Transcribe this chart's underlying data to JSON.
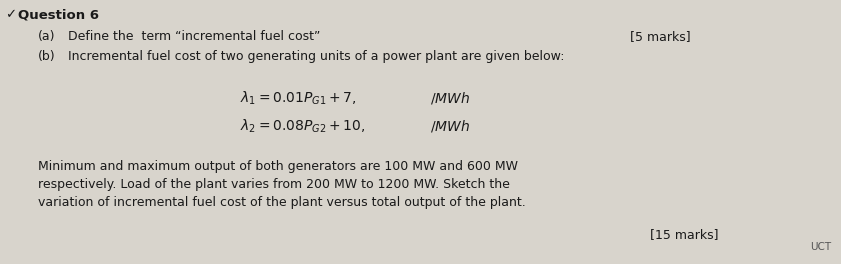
{
  "background_color": "#d8d4cc",
  "text_color": "#1a1a1a",
  "checkmark": "✓",
  "question_number": "Question 6",
  "part_a_label": "(a)",
  "part_a_text": "Define the  term “incremental fuel cost”",
  "part_a_marks": "[5 marks]",
  "part_b_label": "(b)",
  "part_b_text": "Incremental fuel cost of two generating units of a power plant are given below:",
  "eq1": "$\\lambda_1 = 0.01P_{G1} + 7,$   $/MWh$",
  "eq2": "$\\lambda_2 = 0.08P_{G2} + 10,$  $/MWh$",
  "body_line1": "Minimum and maximum output of both generators are 100 MW and 600 MW",
  "body_line2": "respectively. Load of the plant varies from 200 MW to 1200 MW. Sketch the",
  "body_line3": "variation of incremental fuel cost of the plant versus total output of the plant.",
  "marks_text": "[15 marks]",
  "uct_text": "UCT",
  "fs_heading": 9.5,
  "fs_body": 9.0,
  "fs_eq": 10.0
}
